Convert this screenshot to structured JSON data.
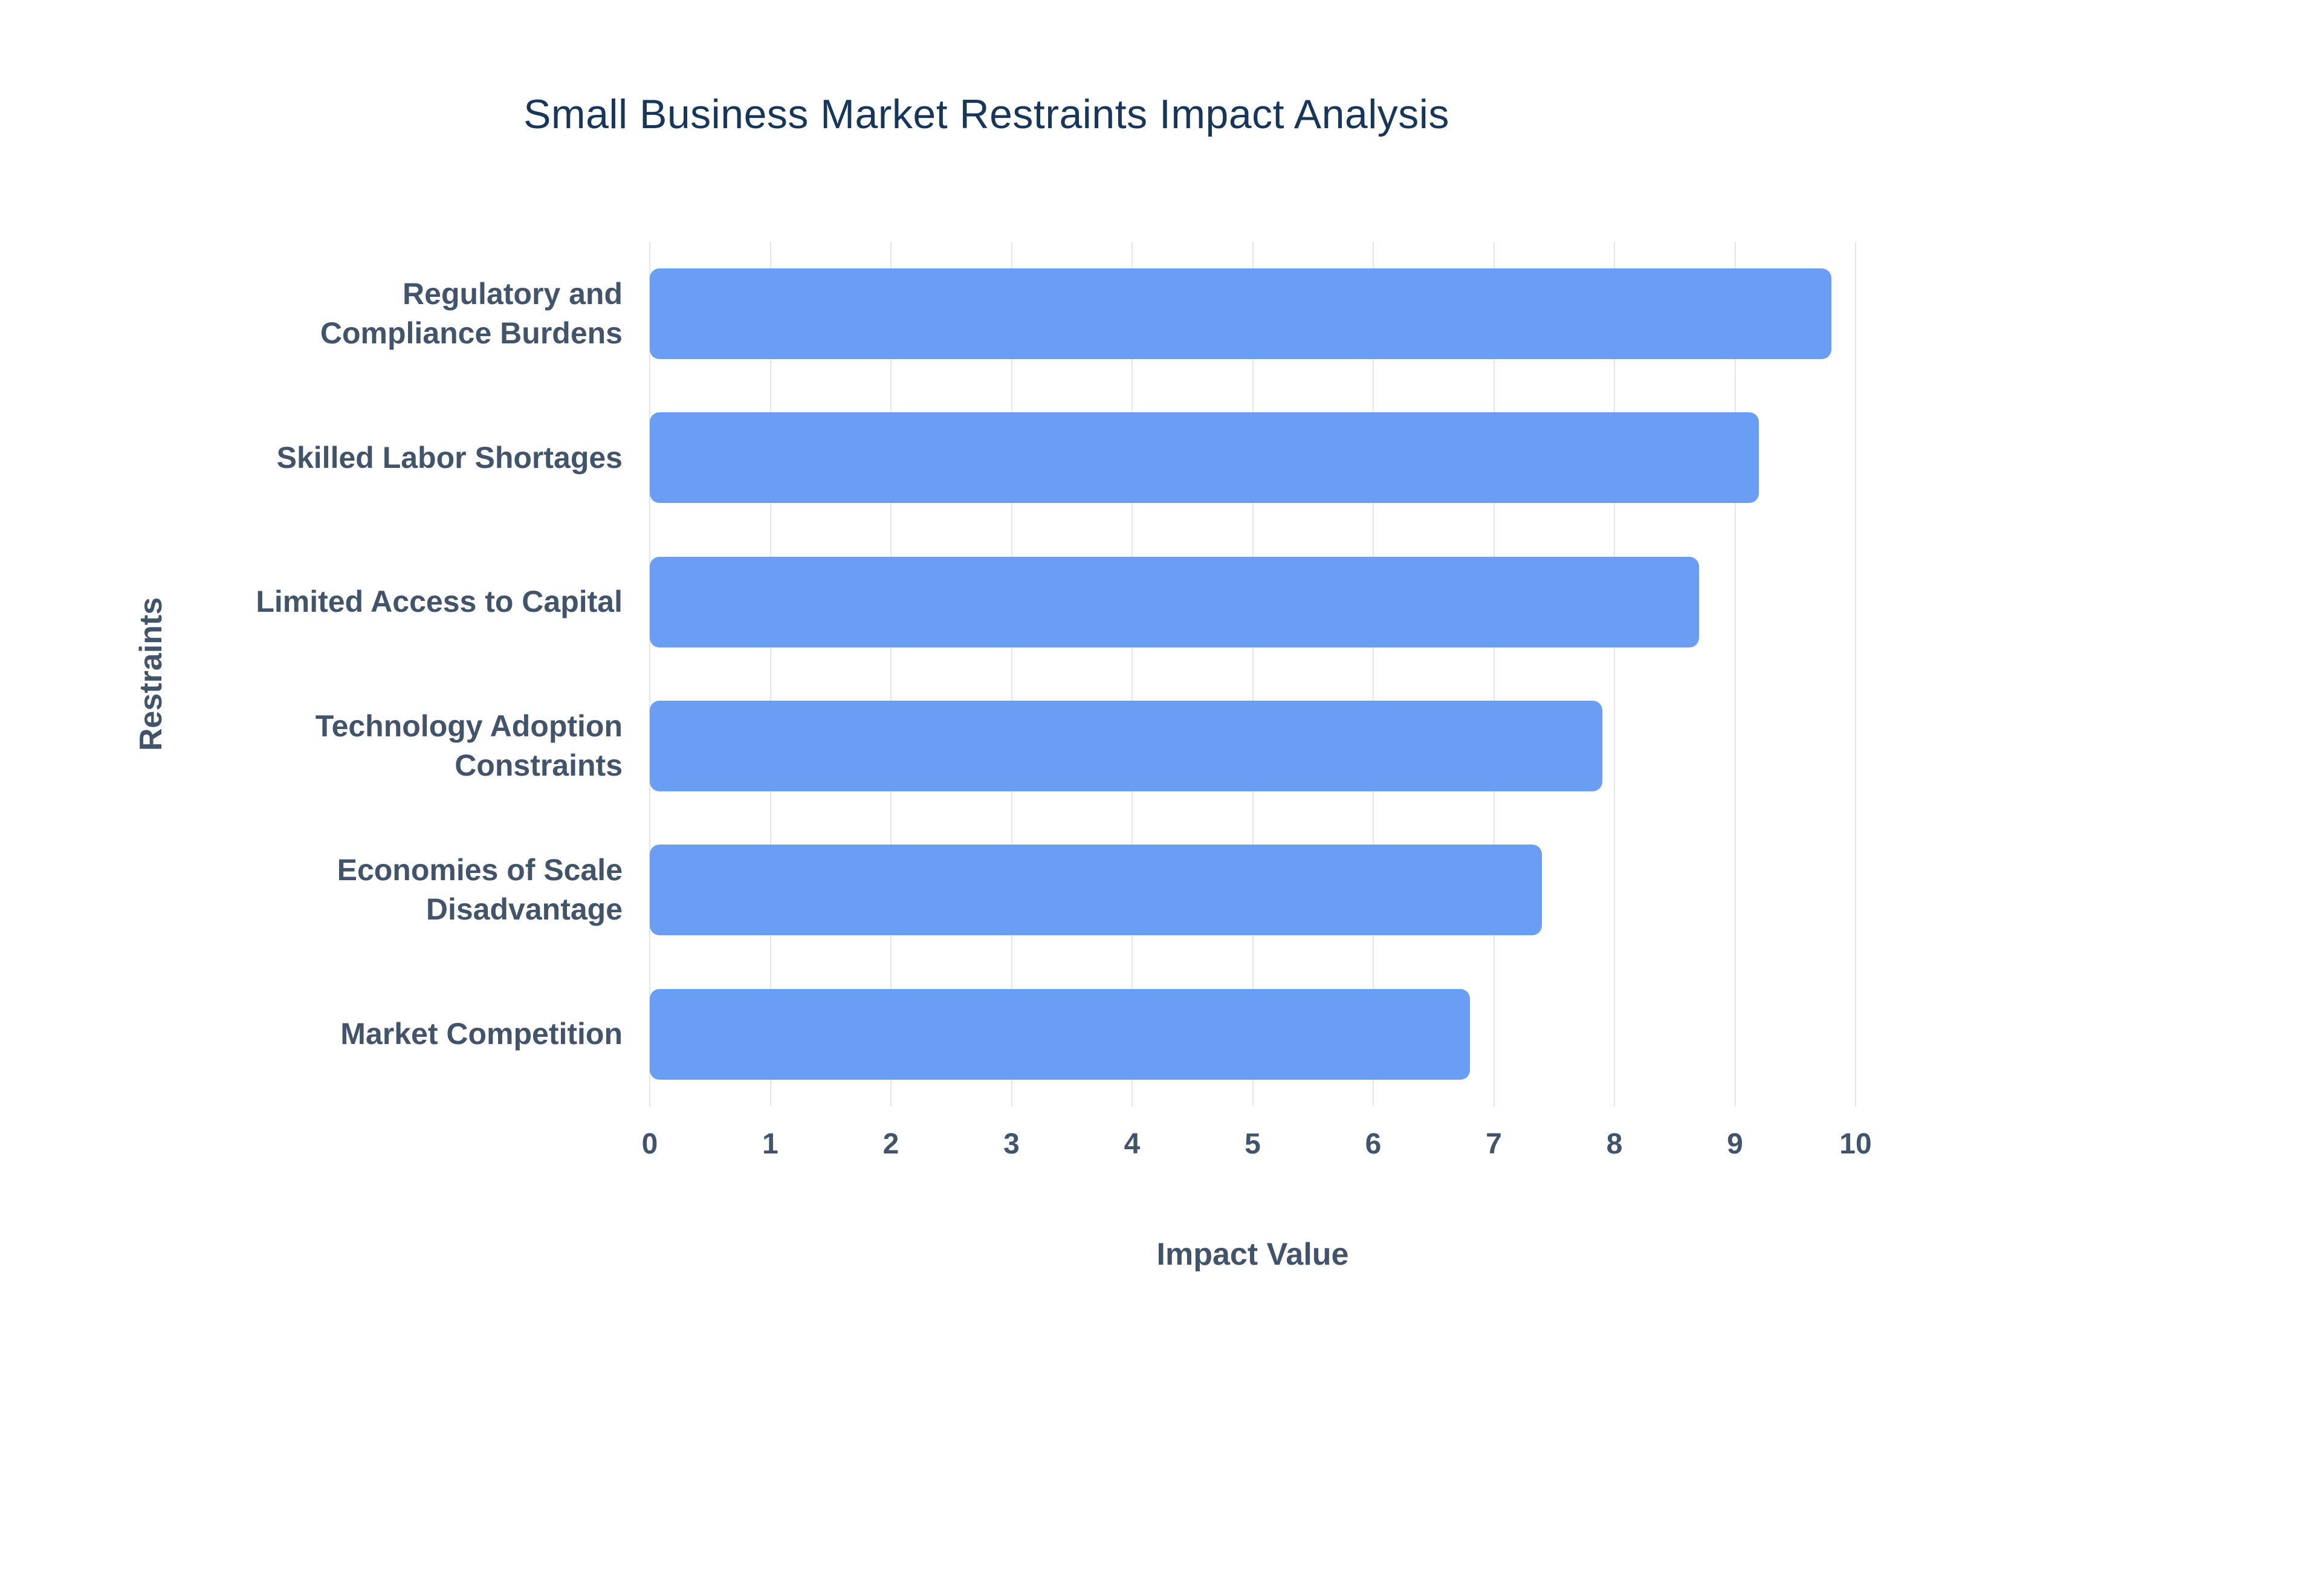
{
  "chart_data": {
    "type": "bar",
    "orientation": "horizontal",
    "title": "Small Business Market Restraints Impact Analysis",
    "xlabel": "Impact Value",
    "ylabel": "Restraints",
    "categories": [
      "Regulatory and Compliance Burdens",
      "Skilled Labor Shortages",
      "Limited Access to Capital",
      "Technology Adoption Constraints",
      "Economies of Scale Disadvantage",
      "Market Competition"
    ],
    "values": [
      9.8,
      9.2,
      8.7,
      7.9,
      7.4,
      6.8
    ],
    "xlim": [
      0,
      10
    ],
    "xticks": [
      0,
      1,
      2,
      3,
      4,
      5,
      6,
      7,
      8,
      9,
      10
    ],
    "grid": "vertical",
    "legend": "none"
  },
  "colors": {
    "bar": "#6A9EF5",
    "title": "#16365C",
    "axis_label": "#42546B",
    "tick_label": "#42546B",
    "gridline": "#E2E6EB",
    "background": "#FFFFFF"
  }
}
